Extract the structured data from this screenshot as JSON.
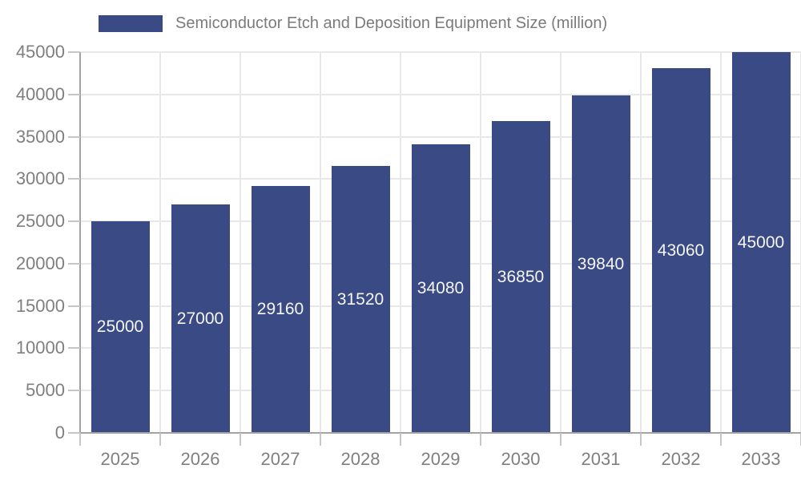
{
  "legend": {
    "label": "Semiconductor Etch and Deposition Equipment Size (million)"
  },
  "chart_data": {
    "type": "bar",
    "title": "Semiconductor Etch and Deposition Equipment Size (million)",
    "categories": [
      "2025",
      "2026",
      "2027",
      "2028",
      "2029",
      "2030",
      "2031",
      "2032",
      "2033"
    ],
    "values": [
      25000,
      27000,
      29160,
      31520,
      34080,
      36850,
      39840,
      43060,
      45000
    ],
    "xlabel": "",
    "ylabel": "",
    "ylim": [
      0,
      45000
    ],
    "ytick_step": 5000,
    "ytick_labels": [
      "0",
      "5000",
      "10000",
      "15000",
      "20000",
      "25000",
      "30000",
      "35000",
      "40000",
      "45000"
    ],
    "grid": true,
    "legend_position": "top-left",
    "colors": {
      "bar": "#3a4a84",
      "value_label": "#f6f6f6",
      "axis_line": "#a3a3a3",
      "tick": "#c6c6c6",
      "gridline": "#e8e8e8",
      "tick_label": "#7f7f7f",
      "title": "#7b7b7b",
      "background": "#ffffff"
    }
  }
}
